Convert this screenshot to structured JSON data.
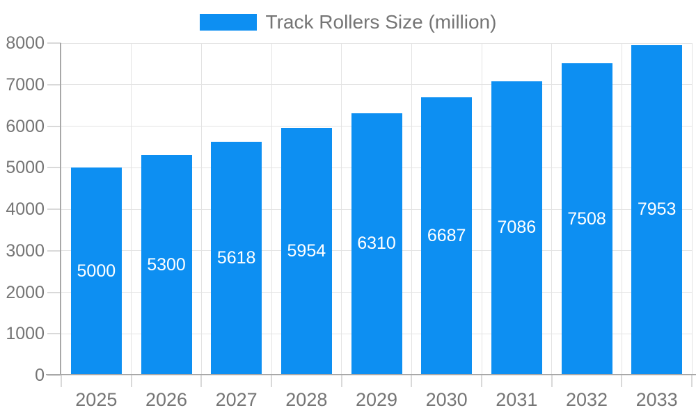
{
  "legend": {
    "label": "Track Rollers Size (million)"
  },
  "chart_data": {
    "type": "bar",
    "title": "Track Rollers Size (million)",
    "categories": [
      "2025",
      "2026",
      "2027",
      "2028",
      "2029",
      "2030",
      "2031",
      "2032",
      "2033"
    ],
    "series": [
      {
        "name": "Track Rollers Size (million)",
        "values": [
          5000,
          5300,
          5618,
          5954,
          6310,
          6687,
          7086,
          7508,
          7953
        ]
      }
    ],
    "xlabel": "",
    "ylabel": "",
    "ylim": [
      0,
      8000
    ],
    "ytick_step": 1000,
    "yticks": [
      0,
      1000,
      2000,
      3000,
      4000,
      5000,
      6000,
      7000,
      8000
    ],
    "grid": true,
    "bar_labels_inside": true,
    "legend_position": "top",
    "colors": {
      "bar": "#0d8ff2",
      "bar_label": "#ffffff",
      "axis_text": "#757575",
      "grid": "#e3e3e3",
      "tick": "#d9d9d9",
      "axis_line": "#a8a8a8",
      "background": "#ffffff"
    }
  }
}
